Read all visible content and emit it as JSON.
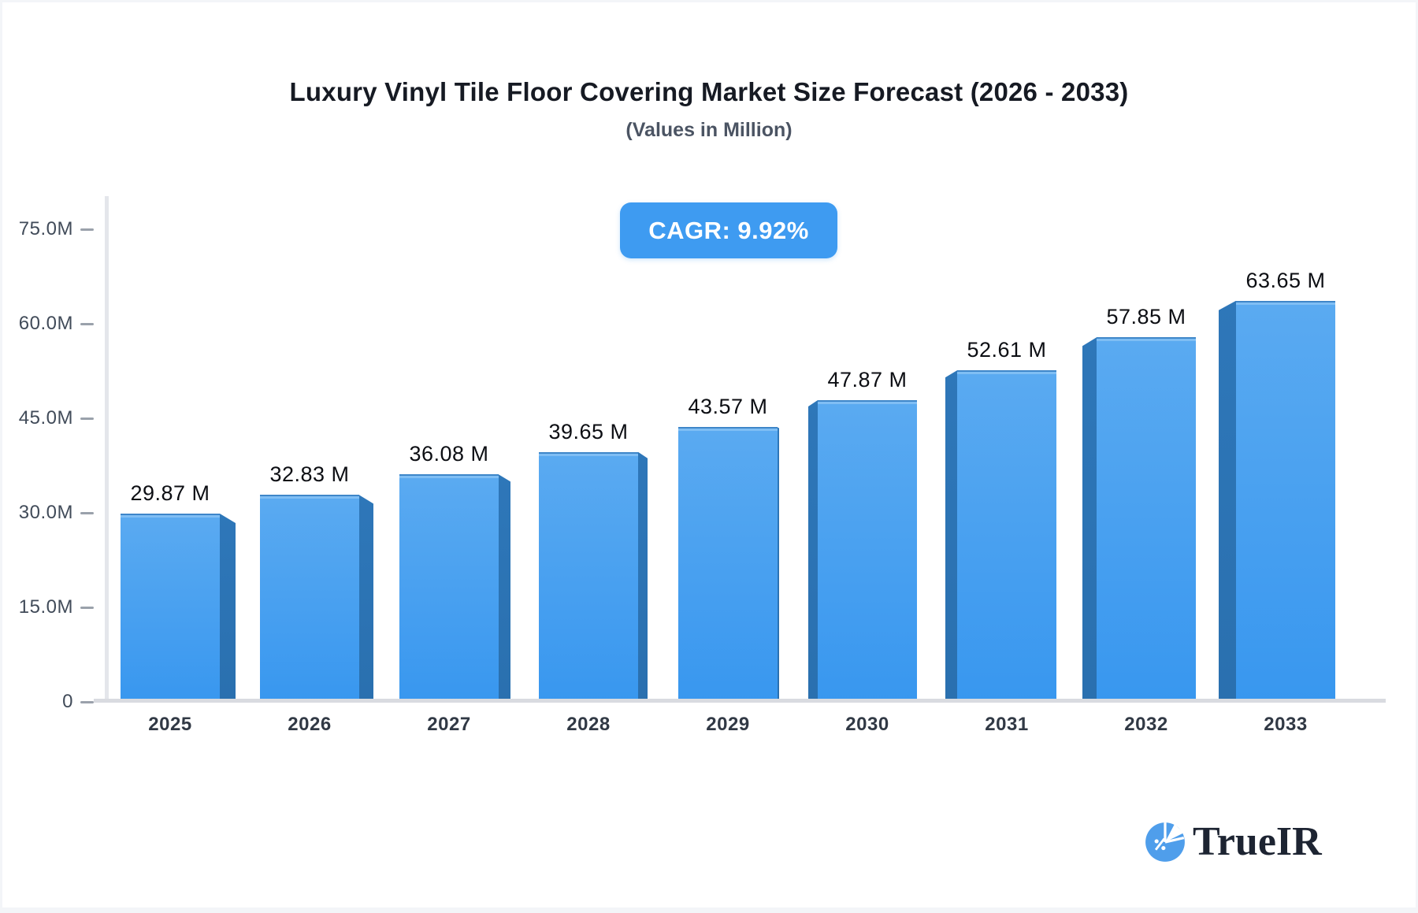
{
  "header": {
    "title": "Luxury Vinyl Tile Floor Covering Market Size Forecast (2026 - 2033)",
    "subtitle": "(Values in Million)"
  },
  "badge": {
    "label": "CAGR: 9.92%"
  },
  "logo": {
    "text": "TrueIR"
  },
  "chart_data": {
    "type": "bar",
    "title": "Luxury Vinyl Tile Floor Covering Market Size Forecast (2026 - 2033)",
    "subtitle": "(Values in Million)",
    "annotation": "CAGR: 9.92%",
    "categories": [
      "2025",
      "2026",
      "2027",
      "2028",
      "2029",
      "2030",
      "2031",
      "2032",
      "2033"
    ],
    "values": [
      29.87,
      32.83,
      36.08,
      39.65,
      43.57,
      47.87,
      52.61,
      57.85,
      63.65
    ],
    "bar_labels": [
      "29.87 M",
      "32.83 M",
      "36.08 M",
      "39.65 M",
      "43.57 M",
      "47.87 M",
      "52.61 M",
      "57.85 M",
      "63.65 M"
    ],
    "xlabel": "",
    "ylabel": "",
    "ylim": [
      0,
      75
    ],
    "y_tick_labels": [
      "75.0M",
      "60.0M",
      "45.0M",
      "30.0M",
      "15.0M",
      "0"
    ],
    "y_tick_values": [
      75,
      60,
      45,
      30,
      15,
      0
    ],
    "grid": false,
    "legend": false,
    "colors": {
      "badge_bg": "#3e9bf1",
      "bar_face_top": "#5aaaf1",
      "bar_face_bottom": "#3897ef",
      "bar_top_edge": "#3e86c9",
      "bar_top_highlight": "#7fbef4",
      "bar_side": "#2e77b9",
      "axis_line": "#e4e6eb",
      "base_line": "#d9dbe0",
      "logo_blue": "#4f9eeb"
    }
  }
}
